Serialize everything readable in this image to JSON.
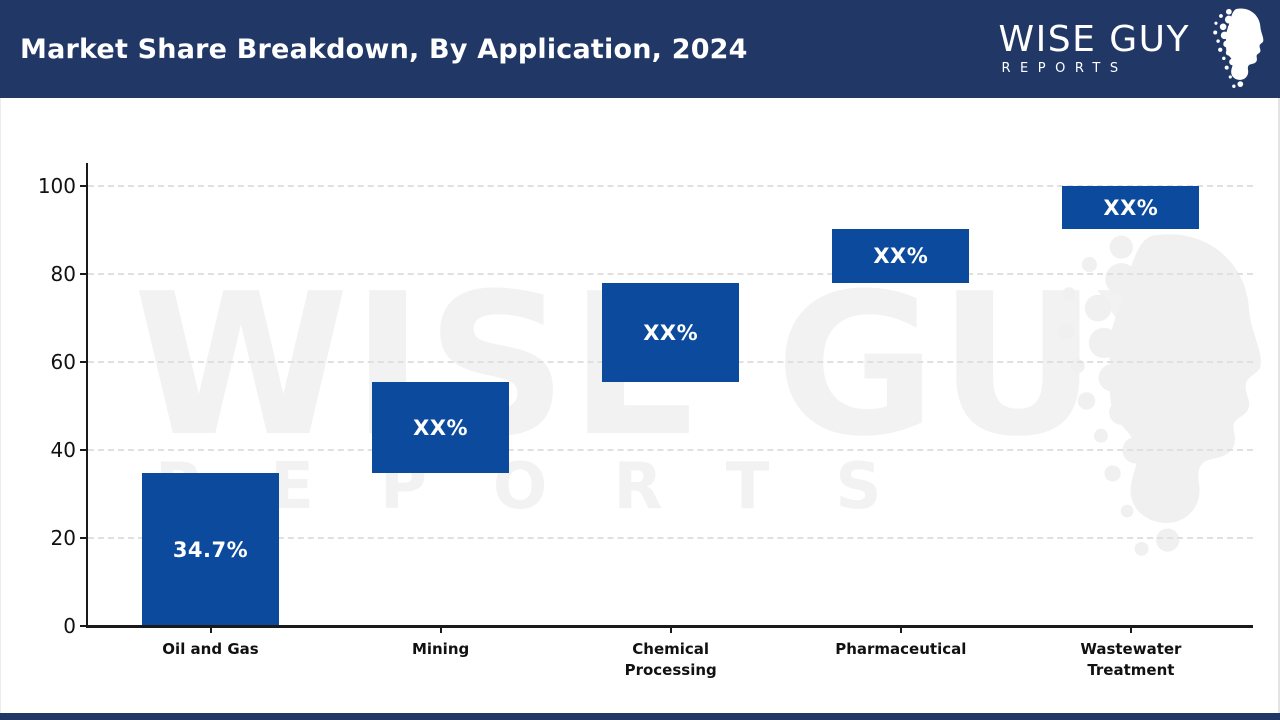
{
  "header": {
    "title": "Market Share Breakdown, By Application, 2024",
    "bg_color": "#213867",
    "logo": {
      "line1": "WISE GUY",
      "line2": "REPORTS"
    }
  },
  "watermark": {
    "line1": "WISE GUY",
    "line2": "REPORTS"
  },
  "footer": {
    "bg_color": "#213867"
  },
  "chart_data": {
    "type": "bar",
    "subtype": "waterfall",
    "title": "Market Share Breakdown, By Application, 2024",
    "categories": [
      "Oil and Gas",
      "Mining",
      "Chemical Processing",
      "Pharmaceutical",
      "Wastewater Treatment"
    ],
    "segments": [
      {
        "category": "Oil and Gas",
        "start": 0,
        "end": 34.7,
        "label": "34.7%"
      },
      {
        "category": "Mining",
        "start": 34.7,
        "end": 55.4,
        "label": "XX%"
      },
      {
        "category": "Chemical Processing",
        "start": 55.4,
        "end": 78.0,
        "label": "XX%"
      },
      {
        "category": "Pharmaceutical",
        "start": 78.0,
        "end": 90.2,
        "label": "XX%"
      },
      {
        "category": "Wastewater Treatment",
        "start": 90.2,
        "end": 100.0,
        "label": "XX%"
      }
    ],
    "xlabel": "",
    "ylabel": "",
    "yticks": [
      0,
      20,
      40,
      60,
      80,
      100
    ],
    "ylim": [
      0,
      105
    ],
    "grid": "horizontal-dashed",
    "legend": "none",
    "bar_color": "#0c4a9e",
    "bar_label_color": "#ffffff"
  }
}
